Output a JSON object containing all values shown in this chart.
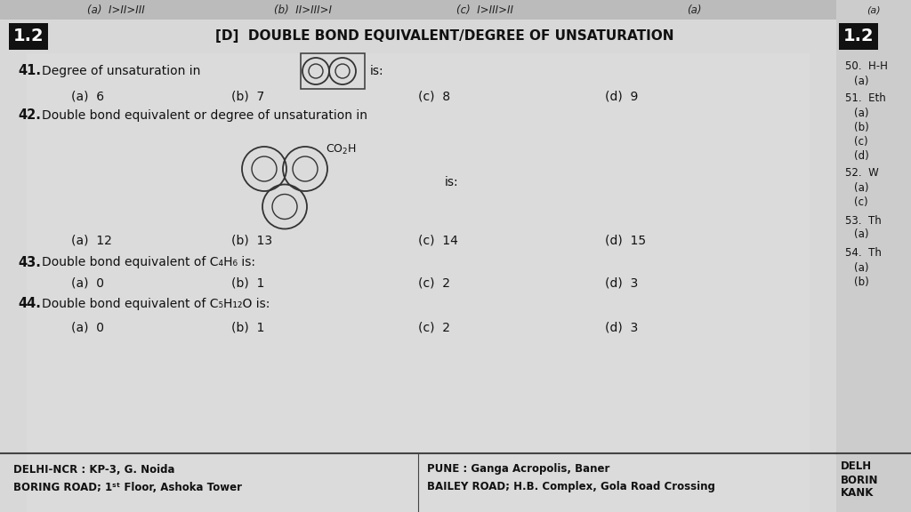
{
  "bg_color": "#c8c8c8",
  "page_bg": "#e0e0e0",
  "header_bg": "#1a1a1a",
  "header_text": "1.2",
  "section_title": "[D]  DOUBLE BOND EQUIVALENT/DEGREE OF UNSATURATION",
  "top_partial": [
    "(a)  I>II>III",
    "(b)  II>III>I",
    "(c)  I>III>II"
  ],
  "q41_label": "41.",
  "q41_text": "Degree of unsaturation in",
  "q41_suffix": "is:",
  "q41_options": [
    "(a)  6",
    "(b)  7",
    "(c)  8",
    "(d)  9"
  ],
  "q42_label": "42.",
  "q42_text": "Double bond equivalent or degree of unsaturation in",
  "q42_suffix": "is:",
  "q42_co2h": "CO₂H",
  "q42_options": [
    "(a)  12",
    "(b)  13",
    "(c)  14",
    "(d)  15"
  ],
  "q43_label": "43.",
  "q43_text": "Double bond equivalent of C₄H₆ is:",
  "q43_options": [
    "(a)  0",
    "(b)  1",
    "(c)  2",
    "(d)  3"
  ],
  "q44_label": "44.",
  "q44_text": "Double bond equivalent of C₅H₁₂O is:",
  "q44_options": [
    "(a)  0",
    "(b)  1",
    "(c)  2",
    "(d)  3"
  ],
  "footer_left1": "DELHI-NCR : KP-3, G. Noida",
  "footer_left2": "BORING ROAD; 1ˢᵗ Floor, Ashoka Tower",
  "footer_right1": "PUNE : Ganga Acropolis, Baner",
  "footer_right2": "BAILEY ROAD; H.B. Complex, Gola Road Crossing",
  "right_label": "1.2",
  "right_50": "50.  H-H",
  "right_50a": "(a)",
  "right_51": "51.  Eth",
  "right_51a": "(a)",
  "right_51b": "(b)",
  "right_51c": "(c)",
  "right_51d": "(d)",
  "right_52": "52.  W",
  "right_52a": "(a)",
  "right_52c": "(c)",
  "right_53": "53.  Th",
  "right_53a": "(a)",
  "right_54": "54.  Th",
  "right_54a": "(a)",
  "right_54b": "(b)",
  "right_footer1": "DELH",
  "right_footer2": "BORIN",
  "right_footer3": "KANK"
}
